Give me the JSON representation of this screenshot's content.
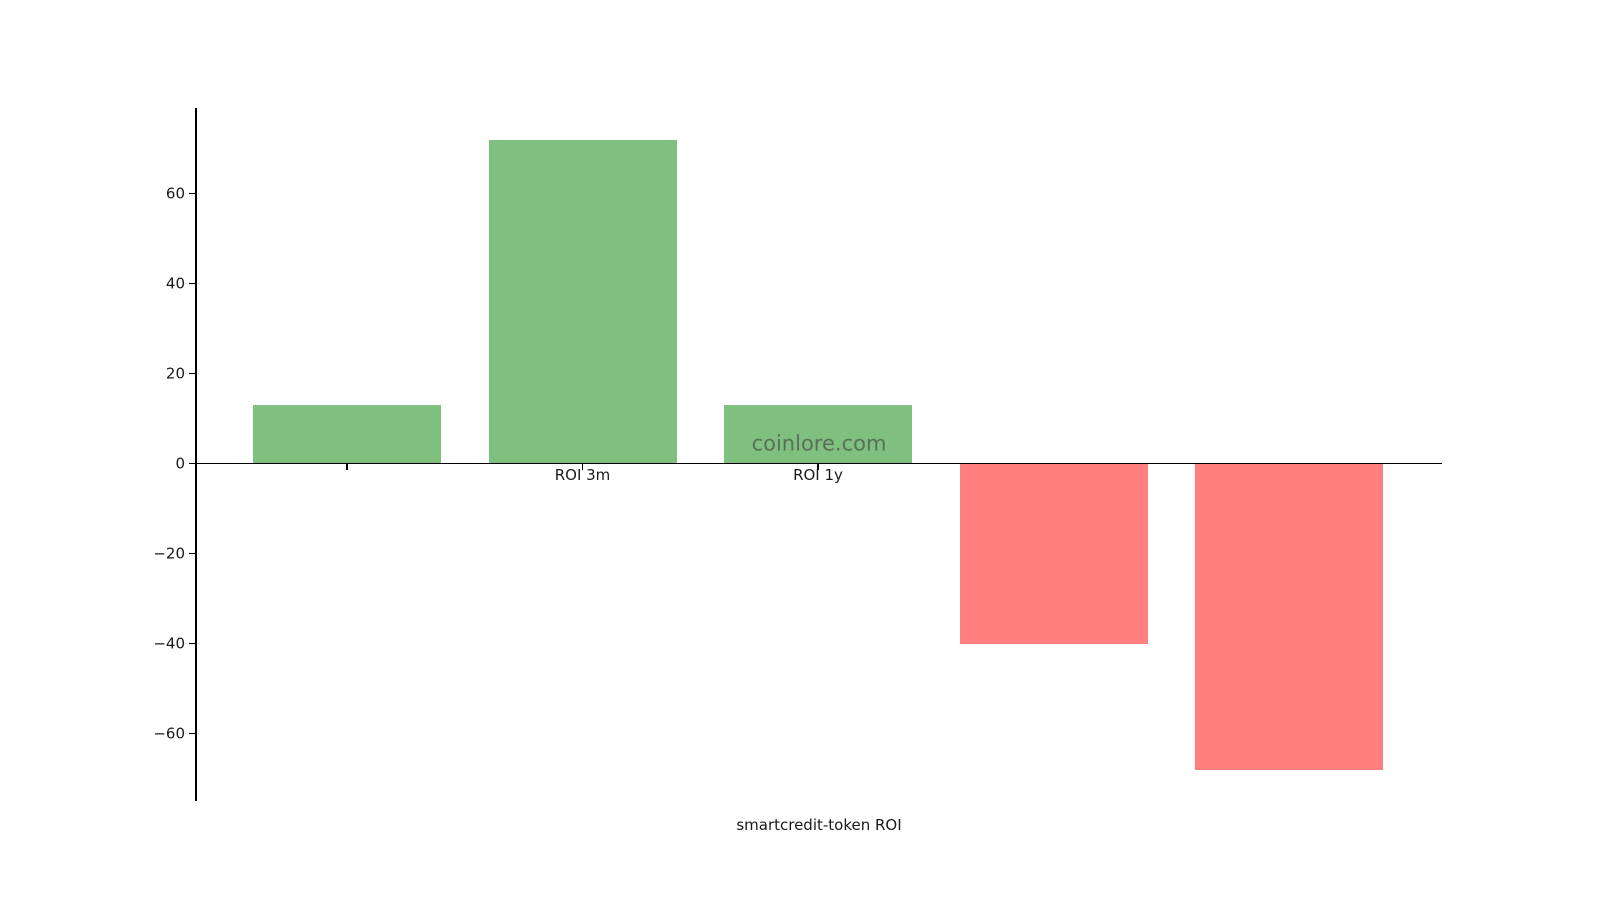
{
  "chart_data": {
    "type": "bar",
    "title": "",
    "xlabel": "smartcredit-token ROI",
    "ylabel": "",
    "categories": [
      "",
      "ROI 3m",
      "ROI 1y",
      "",
      ""
    ],
    "values": [
      13,
      72,
      13,
      -40,
      -68
    ],
    "series_note": "single series; green = positive ROI, red = negative ROI",
    "ylim": [
      -75,
      79
    ],
    "yticks": [
      60,
      40,
      20,
      0,
      -20,
      -40,
      -60
    ],
    "ytick_labels": [
      "60",
      "40",
      "20",
      "0",
      "−20",
      "−40",
      "−60"
    ],
    "grid": false,
    "legend_position": "none",
    "colors": {
      "positive": "#7fbf7f",
      "negative": "#ff7f7f",
      "axis": "#000000",
      "text": "#1a1a1a"
    }
  },
  "watermark": {
    "text": "coinlore.com",
    "color": "rgba(64,64,64,0.62)"
  }
}
